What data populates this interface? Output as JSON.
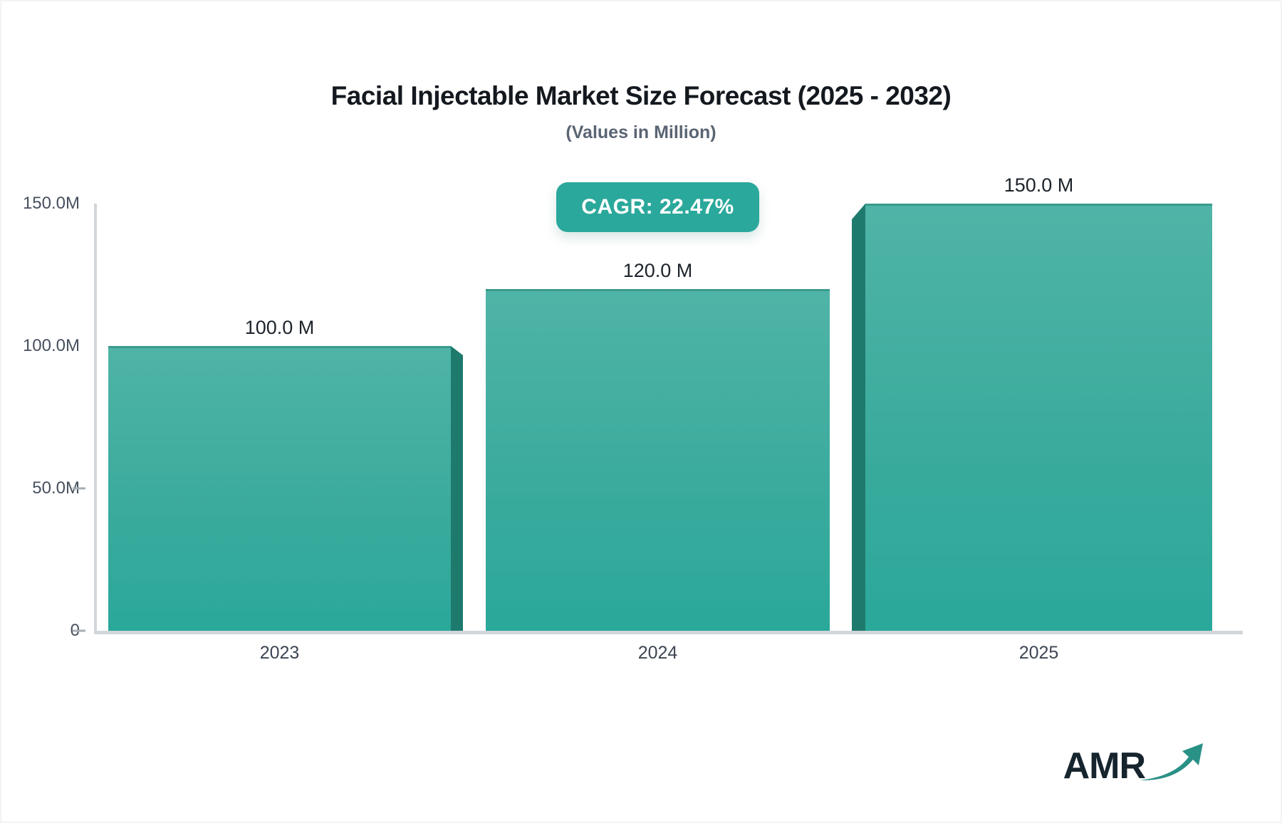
{
  "title": "Facial Injectable Market Size Forecast (2025 - 2032)",
  "subtitle": "(Values in Million)",
  "badge": {
    "label": "CAGR: 22.47%"
  },
  "chart_data": {
    "type": "bar",
    "categories": [
      "2023",
      "2024",
      "2025"
    ],
    "values": [
      100.0,
      120.0,
      150.0
    ],
    "value_labels": [
      "100.0 M",
      "120.0 M",
      "150.0 M"
    ],
    "title": "Facial Injectable Market Size Forecast (2025 - 2032)",
    "subtitle": "(Values in Million)",
    "unit": "Million (M)",
    "annotation": "CAGR: 22.47%",
    "xlabel": "",
    "ylabel": "",
    "ylim": [
      0,
      150
    ],
    "yticks": [
      {
        "label": "150.0M",
        "value": 150,
        "dash": false
      },
      {
        "label": "100.0M",
        "value": 100,
        "dash": false
      },
      {
        "label": "50.0M",
        "value": 50,
        "dash": true
      },
      {
        "label": "0",
        "value": 0,
        "dash": true
      }
    ],
    "grid": false,
    "legend": "none"
  },
  "colors": {
    "bar_top": "#4fb4a7",
    "bar_bottom": "#2aa89a",
    "bar_side_face": "#1f7a6e",
    "badge_background": "#2aa89b",
    "axis_line": "#d2d6db",
    "title_text": "#14191f",
    "subtitle_text": "#5a6573",
    "axis_label_text": "#47505e"
  },
  "logo": {
    "text": "AMR"
  }
}
